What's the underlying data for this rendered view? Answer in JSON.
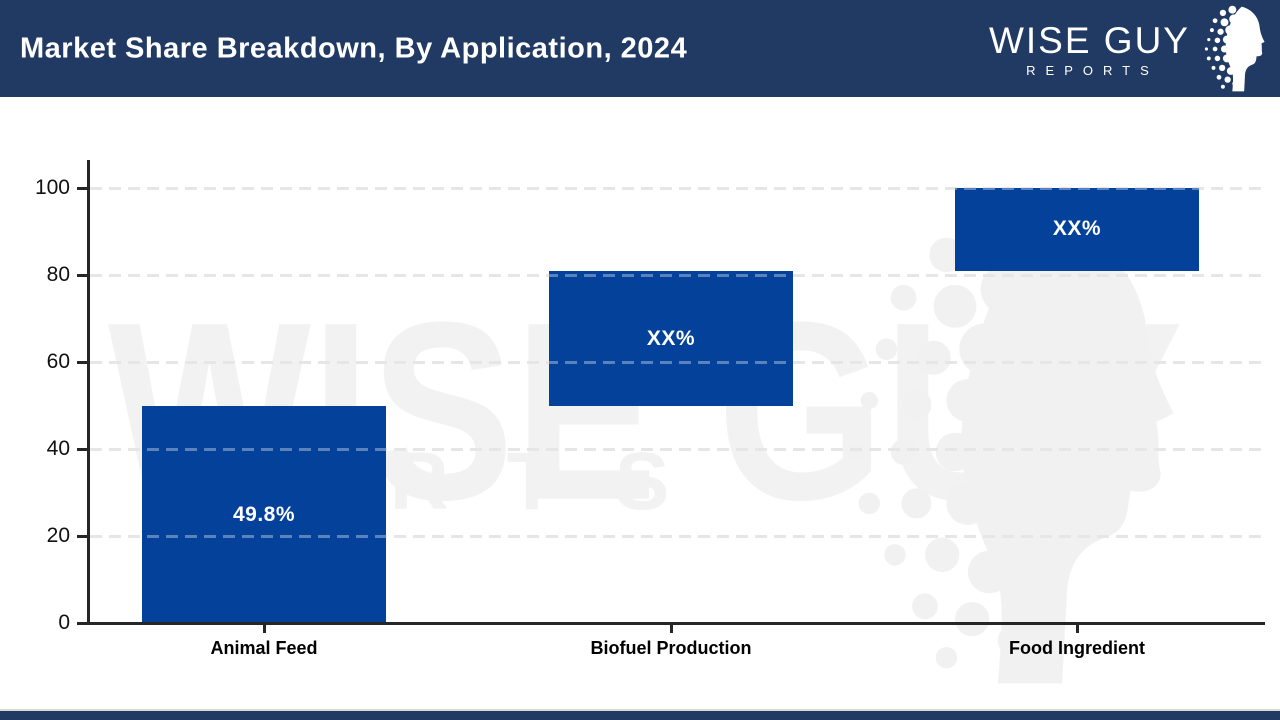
{
  "header": {
    "title": "Market Share Breakdown, By Application, 2024",
    "logo": {
      "line1": "WISE GUY",
      "line2": "REPORTS"
    }
  },
  "watermark": {
    "line1": "WISE GUY",
    "line2": "PORTS"
  },
  "colors": {
    "header_navy": "#213a64",
    "bar_blue": "#04419a",
    "gridline_gray": "#d9d9d9",
    "watermark_gray": "#f2f2f2",
    "axis_black": "#262626",
    "label_white": "#ffffff"
  },
  "chart_data": {
    "type": "bar",
    "subtype": "waterfall",
    "title": "Market Share Breakdown, By Application, 2024",
    "categories": [
      "Animal Feed",
      "Biofuel Production",
      "Food Ingredient"
    ],
    "segments": [
      {
        "category": "Animal Feed",
        "start": 0,
        "end": 49.8,
        "display_label": "49.8%"
      },
      {
        "category": "Biofuel Production",
        "start": 49.8,
        "end": 81,
        "display_label": "XX%"
      },
      {
        "category": "Food Ingredient",
        "start": 81,
        "end": 100,
        "display_label": "XX%"
      }
    ],
    "xlabel": "",
    "ylabel": "",
    "ylim": [
      0,
      100
    ],
    "yticks": [
      0,
      20,
      40,
      60,
      80,
      100
    ],
    "grid": "horizontal dashed",
    "legend": "none"
  }
}
